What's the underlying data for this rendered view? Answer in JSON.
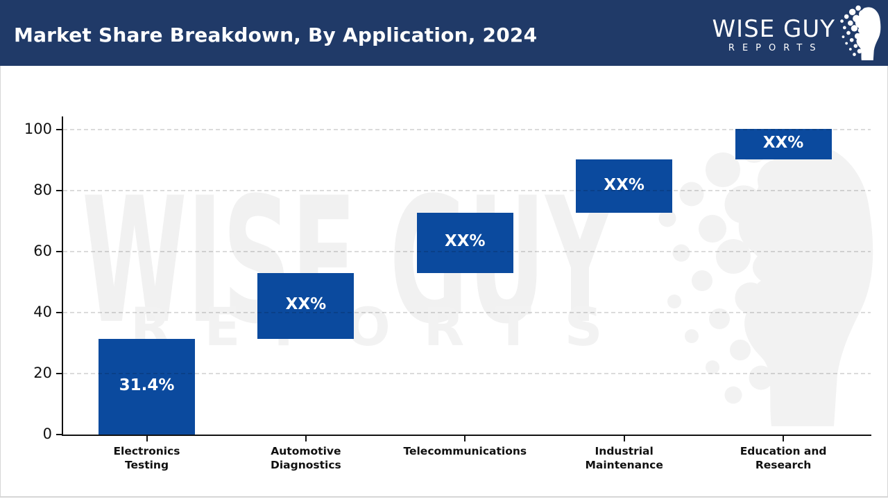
{
  "header": {
    "title": "Market Share Breakdown, By Application, 2024",
    "logo": {
      "line1": "WISE GUY",
      "line2": "REPORTS"
    }
  },
  "watermark": {
    "line1": "WISE GUY",
    "line2": "REPORTS"
  },
  "chart_data": {
    "type": "bar",
    "variant": "waterfall",
    "title": "Market Share Breakdown, By Application, 2024",
    "categories": [
      "Electronics Testing",
      "Automotive Diagnostics",
      "Telecommunications",
      "Industrial Maintenance",
      "Education and Research"
    ],
    "category_lines": [
      [
        "Electronics",
        "Testing"
      ],
      [
        "Automotive",
        "Diagnostics"
      ],
      [
        "Telecommunications"
      ],
      [
        "Industrial",
        "Maintenance"
      ],
      [
        "Education and",
        "Research"
      ]
    ],
    "segments": [
      {
        "category": "Electronics Testing",
        "start": 0,
        "end": 31.4,
        "label": "31.4%"
      },
      {
        "category": "Automotive Diagnostics",
        "start": 31.4,
        "end": 53.0,
        "label": "XX%"
      },
      {
        "category": "Telecommunications",
        "start": 53.0,
        "end": 72.7,
        "label": "XX%"
      },
      {
        "category": "Industrial Maintenance",
        "start": 72.7,
        "end": 90.2,
        "label": "XX%"
      },
      {
        "category": "Education and Research",
        "start": 90.2,
        "end": 100.2,
        "label": "XX%"
      }
    ],
    "xlabel": "",
    "ylabel": "",
    "yticks": [
      0,
      20,
      40,
      60,
      80,
      100
    ],
    "ylim": [
      0,
      104
    ],
    "grid": "horizontal-dashed",
    "legend": "none",
    "bar_color": "#0b4a9e",
    "bar_label_color": "#ffffff",
    "axis_color": "#111111"
  },
  "colors": {
    "header_bg": "#203a68",
    "page_bg": "#ffffff",
    "bar": "#0b4a9e",
    "watermark": "#f1f1f1",
    "frame_border": "#d6d6d6"
  }
}
